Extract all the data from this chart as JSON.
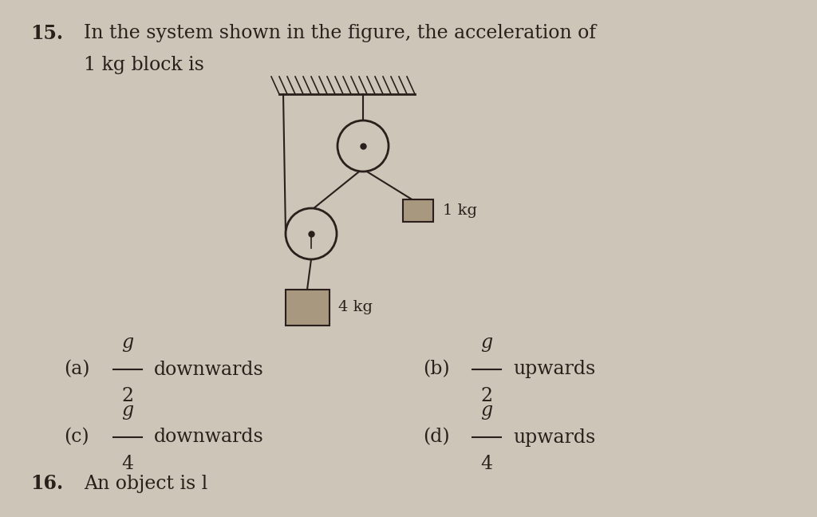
{
  "background_color": "#cdc5b8",
  "question_number": "15.",
  "question_text_line1": "In the system shown in the figure, the acceleration of",
  "question_text_line2": "1 kg block is",
  "fig_width": 10.24,
  "fig_height": 6.48,
  "options": [
    {
      "label": "a",
      "fraction_num": "g",
      "fraction_den": "2",
      "direction": "downwards"
    },
    {
      "label": "b",
      "fraction_num": "g",
      "fraction_den": "2",
      "direction": "upwards"
    },
    {
      "label": "c",
      "fraction_num": "g",
      "fraction_den": "4",
      "direction": "downwards"
    },
    {
      "label": "d",
      "fraction_num": "g",
      "fraction_den": "4",
      "direction": "upwards"
    }
  ],
  "text_color": "#2a1f1a",
  "pulley_color": "#2a1f1a",
  "block1_color": "#a89880",
  "block4_color": "#a89880",
  "line_color": "#2a1f1a",
  "note_bottom": "16.  An object is l"
}
